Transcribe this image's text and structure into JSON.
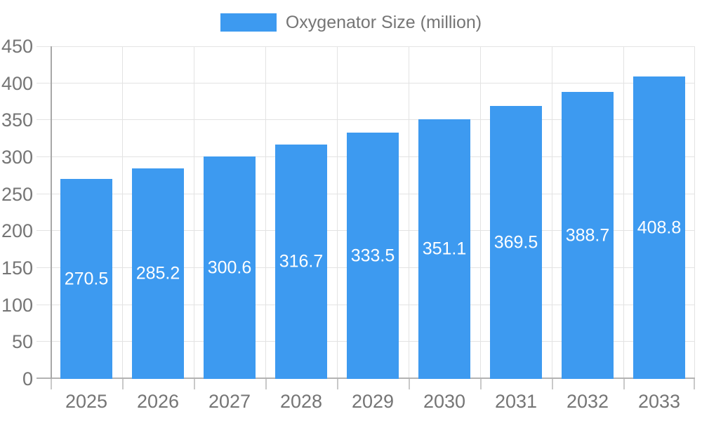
{
  "chart_data": {
    "type": "bar",
    "title": "",
    "categories": [
      "2025",
      "2026",
      "2027",
      "2028",
      "2029",
      "2030",
      "2031",
      "2032",
      "2033"
    ],
    "series": [
      {
        "name": "Oxygenator Size (million)",
        "values": [
          270.5,
          285.2,
          300.6,
          316.7,
          333.5,
          351.1,
          369.5,
          388.7,
          408.8
        ]
      }
    ],
    "data_labels": [
      "270.5",
      "285.2",
      "300.6",
      "316.7",
      "333.5",
      "351.1",
      "369.5",
      "388.7",
      "408.8"
    ],
    "ytick_labels": [
      "0",
      "50",
      "100",
      "150",
      "200",
      "250",
      "300",
      "350",
      "400",
      "450"
    ],
    "xlabel": "",
    "ylabel": "",
    "ylim": [
      0,
      450
    ],
    "ytick_step": 50,
    "grid": true,
    "legend_position": "top",
    "colors": {
      "bar": "#3D9AF0",
      "bar_label": "#FFFFFF",
      "axis_text": "#757575",
      "grid_line": "#E3E3E3",
      "x_axis_line": "#B3B3B3",
      "y_axis_line": "#A8A8A8",
      "tick": "#C9C9C9",
      "background": "#FFFFFF"
    }
  }
}
